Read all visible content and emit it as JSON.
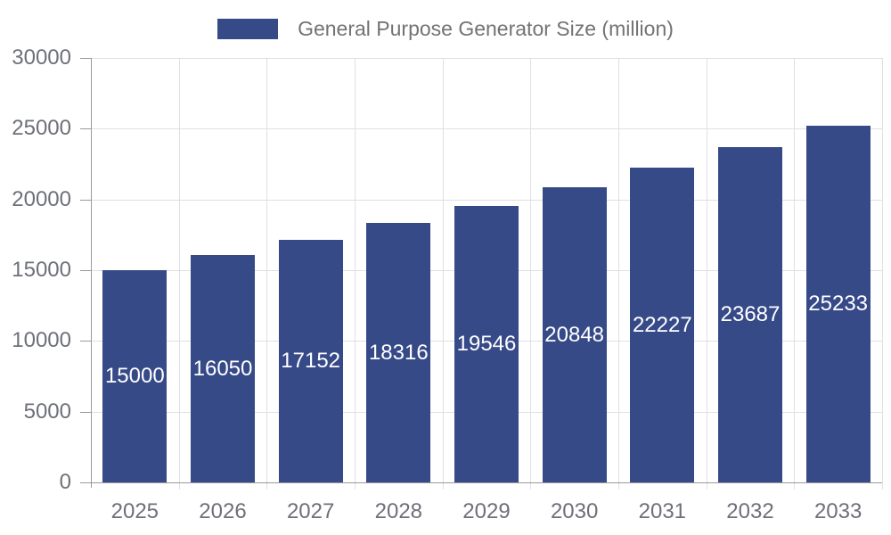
{
  "legend": {
    "label": "General Purpose Generator Size (million)"
  },
  "chart_data": {
    "type": "bar",
    "title": "General Purpose Generator Size (million)",
    "categories": [
      "2025",
      "2026",
      "2027",
      "2028",
      "2029",
      "2030",
      "2031",
      "2032",
      "2033"
    ],
    "series": [
      {
        "name": "General Purpose Generator Size (million)",
        "values": [
          15000,
          16050,
          17152,
          18316,
          19546,
          20848,
          22227,
          23687,
          25233
        ]
      }
    ],
    "bar_value_labels": [
      "15000",
      "16050",
      "17152",
      "18316",
      "19546",
      "20848",
      "22227",
      "23687",
      "25233"
    ],
    "ylim": [
      0,
      30000
    ],
    "yticks": [
      0,
      5000,
      10000,
      15000,
      20000,
      25000,
      30000
    ],
    "ytick_labels": [
      "0",
      "5000",
      "10000",
      "15000",
      "20000",
      "25000",
      "30000"
    ],
    "grid": true,
    "legend_position": "top-center",
    "colors": {
      "bar": "#374A88",
      "grid": "#E0E0E4",
      "axis": "#999999",
      "tick_label": "#6E7079",
      "legend_text": "#737373",
      "value_label": "#FFFFFF"
    }
  }
}
